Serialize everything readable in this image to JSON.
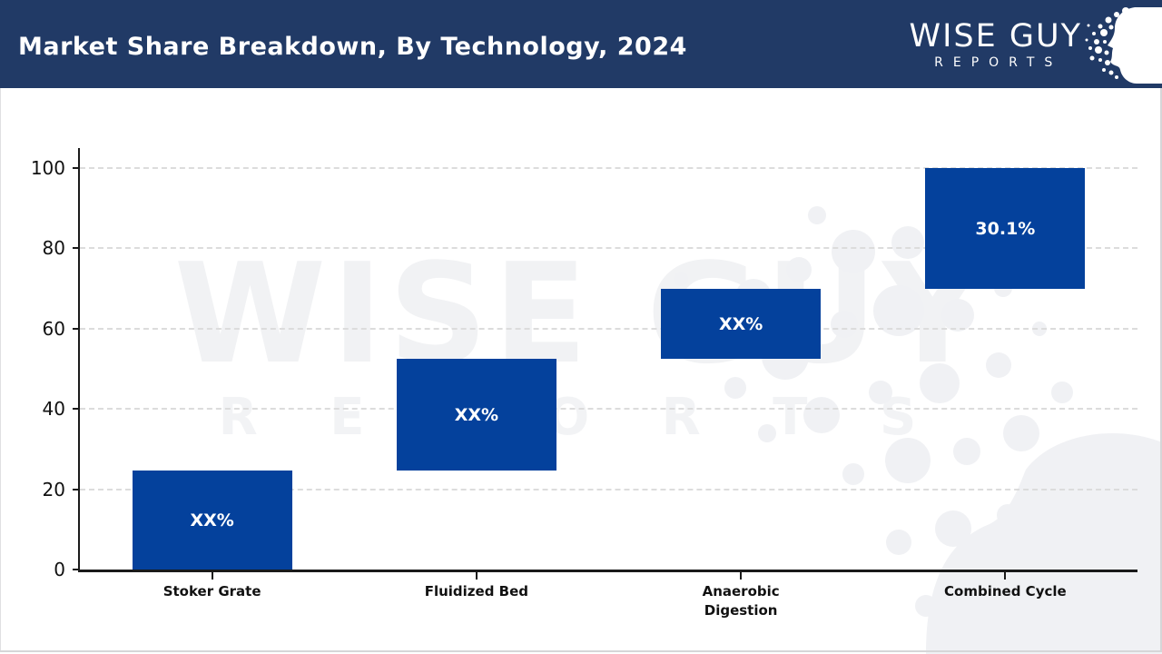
{
  "header": {
    "title": "Market Share Breakdown, By Technology, 2024",
    "logo": {
      "line1": "WISE GUY",
      "line2": "REPORTS"
    }
  },
  "watermark": {
    "line1": "WISE GUY",
    "line2": "REPORTS"
  },
  "chart_data": {
    "type": "bar",
    "subtype": "waterfall",
    "title": "Market Share Breakdown, By Technology, 2024",
    "categories": [
      "Stoker Grate",
      "Fluidized Bed",
      "Anaerobic Digestion",
      "Combined Cycle"
    ],
    "segments": [
      {
        "category": "Stoker Grate",
        "start": 0,
        "end": 24.6,
        "value_label": "XX%"
      },
      {
        "category": "Fluidized Bed",
        "start": 24.6,
        "end": 52.4,
        "value_label": "XX%"
      },
      {
        "category": "Anaerobic Digestion",
        "start": 52.4,
        "end": 69.9,
        "value_label": "XX%"
      },
      {
        "category": "Combined Cycle",
        "start": 69.9,
        "end": 100,
        "value_label": "30.1%"
      }
    ],
    "y_ticks": [
      0,
      20,
      40,
      60,
      80,
      100
    ],
    "ylim": [
      0,
      105
    ],
    "grid": "dashed-horizontal",
    "legend": "none",
    "bar_color": "#04419C",
    "bar_label_color": "#ffffff",
    "axis_color": "#1a1a1a"
  }
}
